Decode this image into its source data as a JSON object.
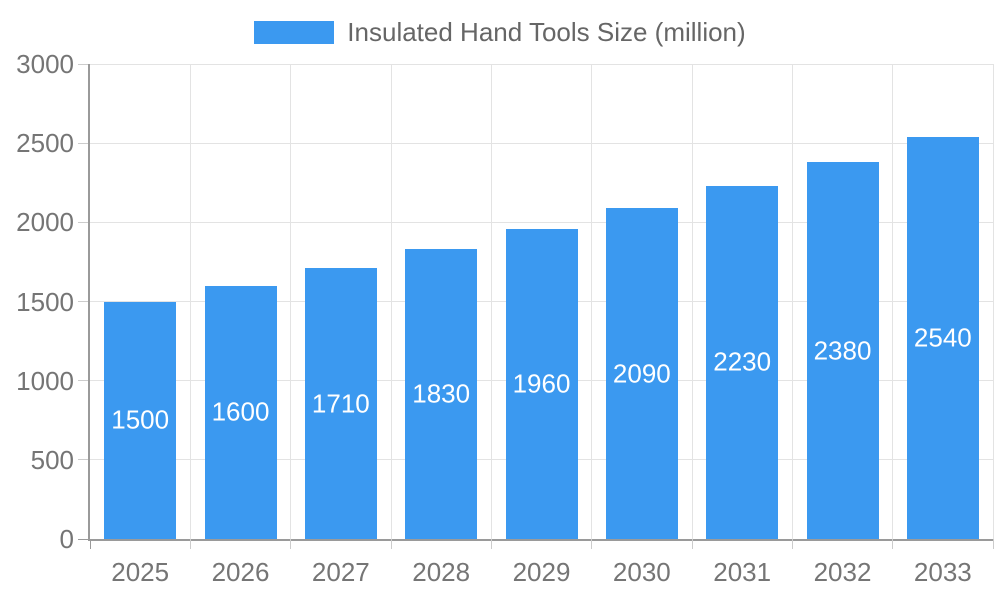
{
  "chart_data": {
    "type": "bar",
    "title": "Insulated Hand Tools Size (million)",
    "legend": {
      "position": "top",
      "entries": [
        "Insulated Hand Tools Size (million)"
      ]
    },
    "categories": [
      "2025",
      "2026",
      "2027",
      "2028",
      "2029",
      "2030",
      "2031",
      "2032",
      "2033"
    ],
    "values": [
      1500,
      1600,
      1710,
      1830,
      1960,
      2090,
      2230,
      2380,
      2540
    ],
    "value_labels_shown": true,
    "xlabel": "",
    "ylabel": "",
    "ylim": [
      0,
      3000
    ],
    "yticks": [
      0,
      500,
      1000,
      1500,
      2000,
      2500,
      3000
    ],
    "grid": true,
    "bar_color": "#3B99F0",
    "bar_label_color": "#FFFFFF",
    "axis_text_color": "#757575",
    "legend_text_color": "#666666",
    "grid_color": "#E3E3E3",
    "axis_line_color": "#9A9A9A",
    "background_color": "#FFFFFF"
  }
}
